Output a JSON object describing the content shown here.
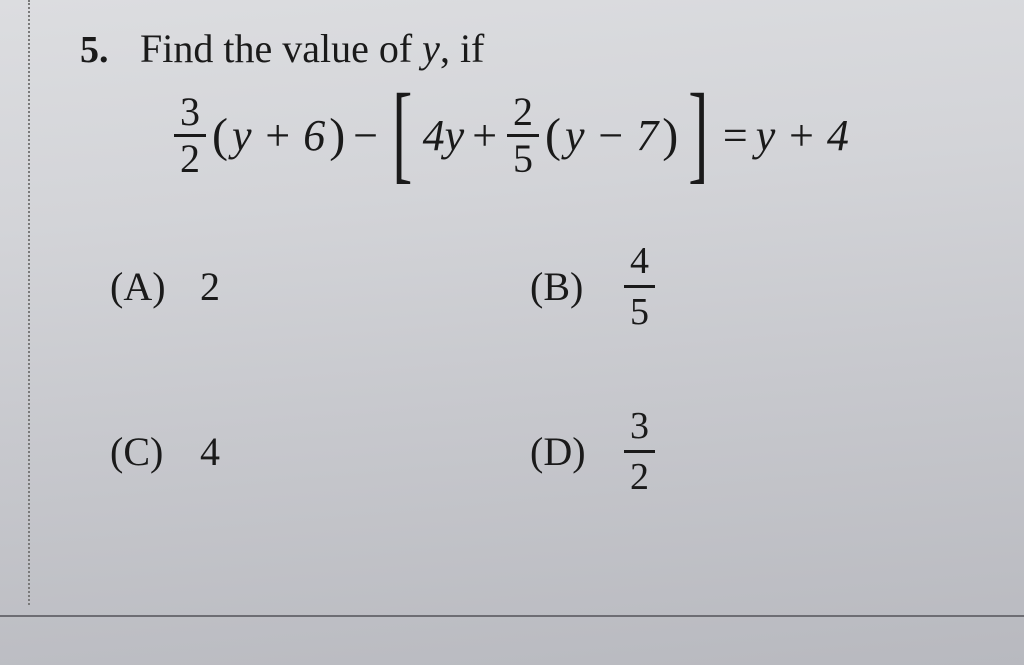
{
  "question": {
    "number": "5.",
    "prompt_before_var": "Find the value of ",
    "variable": "y",
    "prompt_after_var": ", if"
  },
  "equation": {
    "frac1": {
      "num": "3",
      "den": "2"
    },
    "group1_inner": "y + 6",
    "minus": "−",
    "lbracket": "[",
    "term_4y": "4y",
    "plus1": "+",
    "frac2": {
      "num": "2",
      "den": "5"
    },
    "group2_inner": "y − 7",
    "rbracket": "]",
    "equals": "=",
    "rhs": "y + 4"
  },
  "options": {
    "A": {
      "label": "(A)",
      "kind": "int",
      "value": "2"
    },
    "B": {
      "label": "(B)",
      "kind": "frac",
      "num": "4",
      "den": "5"
    },
    "C": {
      "label": "(C)",
      "kind": "int",
      "value": "4"
    },
    "D": {
      "label": "(D)",
      "kind": "frac",
      "num": "3",
      "den": "2"
    }
  },
  "style": {
    "text_color": "#1a1a1a",
    "background_gradient": [
      "#dcdde0",
      "#b8b9bf"
    ],
    "question_fontsize_pt": 30,
    "equation_fontsize_pt": 33,
    "option_fontsize_pt": 30,
    "font_family": "Georgia, Times New Roman, serif"
  }
}
